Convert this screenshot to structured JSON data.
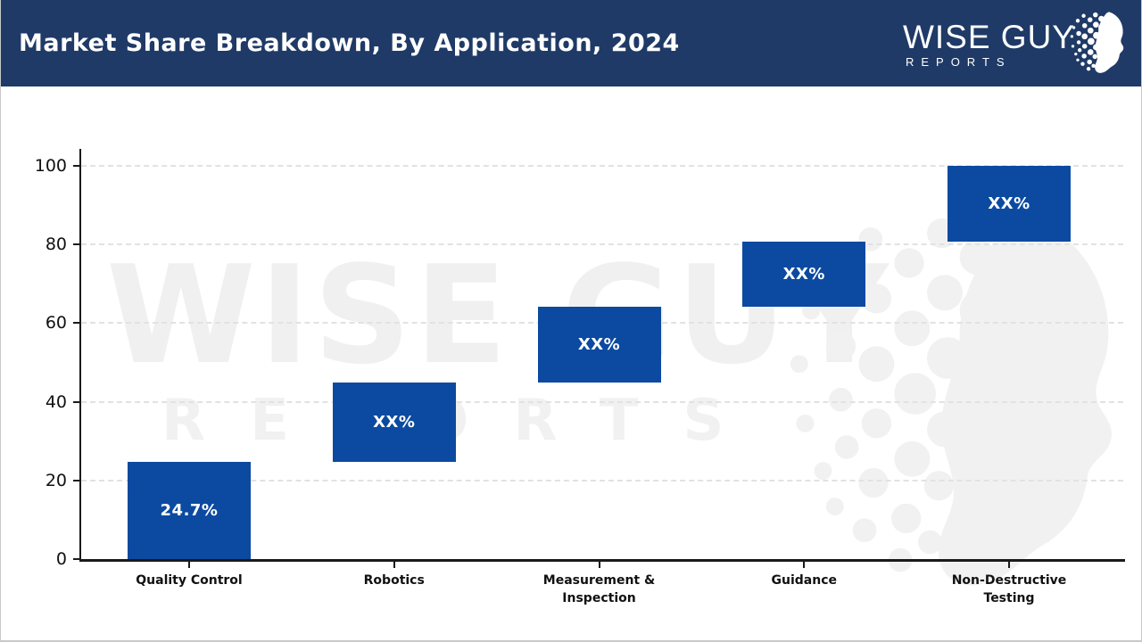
{
  "header": {
    "title": "Market Share Breakdown, By Application, 2024",
    "bg_color": "#1f3a66",
    "logo": {
      "line1": "WISE GUY",
      "line2": "REPORTS"
    }
  },
  "watermark": {
    "line1": "WISE GUY",
    "line2": "REPORTS"
  },
  "chart_data": {
    "type": "bar",
    "variant": "waterfall-floating-bars",
    "title": "Market Share Breakdown, By Application, 2024",
    "xlabel": "",
    "ylabel": "",
    "ylim": [
      0,
      105
    ],
    "yticks": [
      0,
      20,
      40,
      60,
      80,
      100
    ],
    "grid": "horizontal-dashed",
    "legend": "none",
    "bar_color": "#0b4aa0",
    "bar_label_color": "#ffffff",
    "categories": [
      "Quality Control",
      "Robotics",
      "Measurement & Inspection",
      "Guidance",
      "Non-Destructive Testing"
    ],
    "segments": [
      {
        "category": "Quality Control",
        "start": 0,
        "end": 24.7,
        "value_pct": 24.7,
        "label": "24.7%"
      },
      {
        "category": "Robotics",
        "start": 24.7,
        "end": 45.0,
        "value_pct": 20.3,
        "label": "XX%"
      },
      {
        "category": "Measurement & Inspection",
        "start": 45.0,
        "end": 64.2,
        "value_pct": 19.2,
        "label": "XX%"
      },
      {
        "category": "Guidance",
        "start": 64.2,
        "end": 80.8,
        "value_pct": 16.6,
        "label": "XX%"
      },
      {
        "category": "Non-Destructive Testing",
        "start": 80.8,
        "end": 100.0,
        "value_pct": 19.2,
        "label": "XX%"
      }
    ]
  }
}
